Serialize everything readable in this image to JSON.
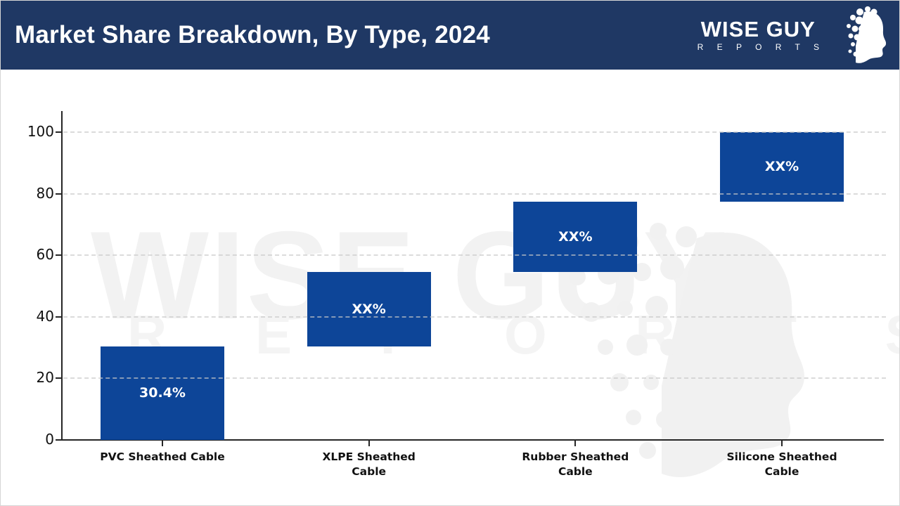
{
  "header": {
    "title": "Market Share Breakdown, By Type, 2024",
    "logo": {
      "name": "WISE GUY",
      "sub": "R E P O R T S"
    }
  },
  "watermark": {
    "line1": "WISE GUY",
    "line2": "R E P O R T S"
  },
  "chart_data": {
    "type": "bar",
    "subtype": "floating-waterfall",
    "title": "Market Share Breakdown, By Type, 2024",
    "categories": [
      "PVC Sheathed Cable",
      "XLPE Sheathed\nCable",
      "Rubber Sheathed\nCable",
      "Silicone Sheathed\nCable"
    ],
    "bars": [
      {
        "category": "PVC Sheathed Cable",
        "start": 0,
        "end": 30.4,
        "label": "30.4%"
      },
      {
        "category": "XLPE Sheathed Cable",
        "start": 30.4,
        "end": 54.5,
        "label": "XX%"
      },
      {
        "category": "Rubber Sheathed Cable",
        "start": 54.5,
        "end": 77.5,
        "label": "XX%"
      },
      {
        "category": "Silicone Sheathed Cable",
        "start": 77.5,
        "end": 100,
        "label": "XX%"
      }
    ],
    "ylim": [
      0,
      100
    ],
    "yticks": [
      0,
      20,
      40,
      60,
      80,
      100
    ],
    "grid": "horizontal-dashed",
    "legend_position": "none",
    "bar_color": "#0d4598",
    "value_label_color": "#ffffff"
  },
  "colors": {
    "header_bg": "#1f3864",
    "bar": "#0d4598",
    "grid": "#d9d9d9",
    "axis": "#262626",
    "text": "#111111",
    "watermark": "#f2f2f2"
  }
}
